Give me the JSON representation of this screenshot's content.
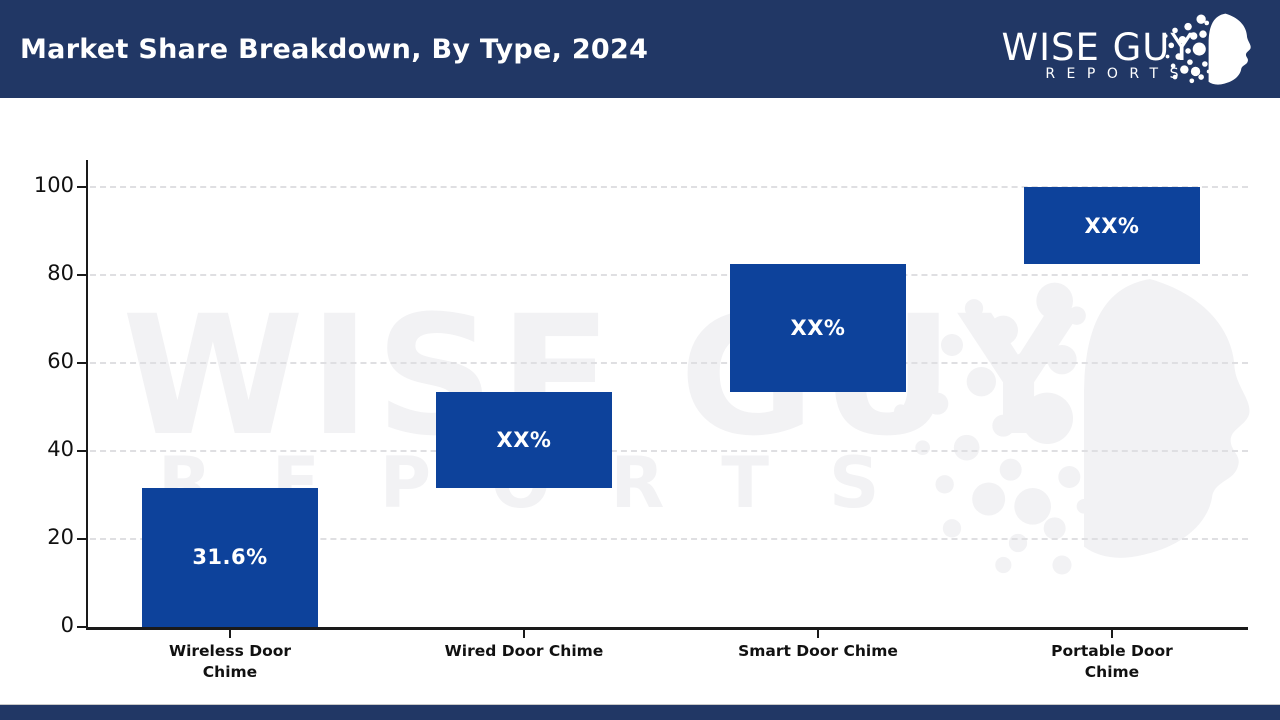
{
  "header": {
    "title": "Market Share Breakdown, By Type, 2024",
    "logo": {
      "line1": "WISE GUY",
      "line2": "REPORTS"
    }
  },
  "watermark": {
    "line1": "WISE GUY",
    "line2": "REPORTS"
  },
  "footer": {},
  "colors": {
    "header_bg": "#213765",
    "footer_bg": "#213765",
    "bar_fill": "#0d429b",
    "bar_label_text": "#ffffff",
    "watermark_gray": "#f2f2f4",
    "gridline": "#dfdfe2",
    "axis": "#1a1a1a",
    "title_text": "#ffffff",
    "tick_text": "#111111"
  },
  "chart_data": {
    "type": "bar",
    "subtype": "waterfall-stacked-breakdown",
    "title": "Market Share Breakdown, By Type, 2024",
    "categories": [
      "Wireless Door Chime",
      "Wired Door Chime",
      "Smart Door Chime",
      "Portable Door Chime"
    ],
    "categories_display": [
      [
        "Wireless Door",
        "Chime"
      ],
      [
        "Wired Door Chime"
      ],
      [
        "Smart Door Chime"
      ],
      [
        "Portable Door",
        "Chime"
      ]
    ],
    "segments": [
      {
        "category": "Wireless Door Chime",
        "start": 0,
        "end": 31.6,
        "value": 31.6,
        "label": "31.6%"
      },
      {
        "category": "Wired Door Chime",
        "start": 31.6,
        "end": 53.5,
        "value": 21.9,
        "label": "XX%"
      },
      {
        "category": "Smart Door Chime",
        "start": 53.5,
        "end": 82.5,
        "value": 29.0,
        "label": "XX%"
      },
      {
        "category": "Portable Door Chime",
        "start": 82.5,
        "end": 100,
        "value": 17.5,
        "label": "XX%"
      }
    ],
    "yticks": [
      0,
      20,
      40,
      60,
      80,
      100
    ],
    "ylim": [
      0,
      105
    ],
    "xlabel": "",
    "ylabel": "",
    "grid": "dashed-horizontal",
    "legend": null,
    "bar_color": "#0d429b",
    "bar_label_color": "#ffffff"
  }
}
